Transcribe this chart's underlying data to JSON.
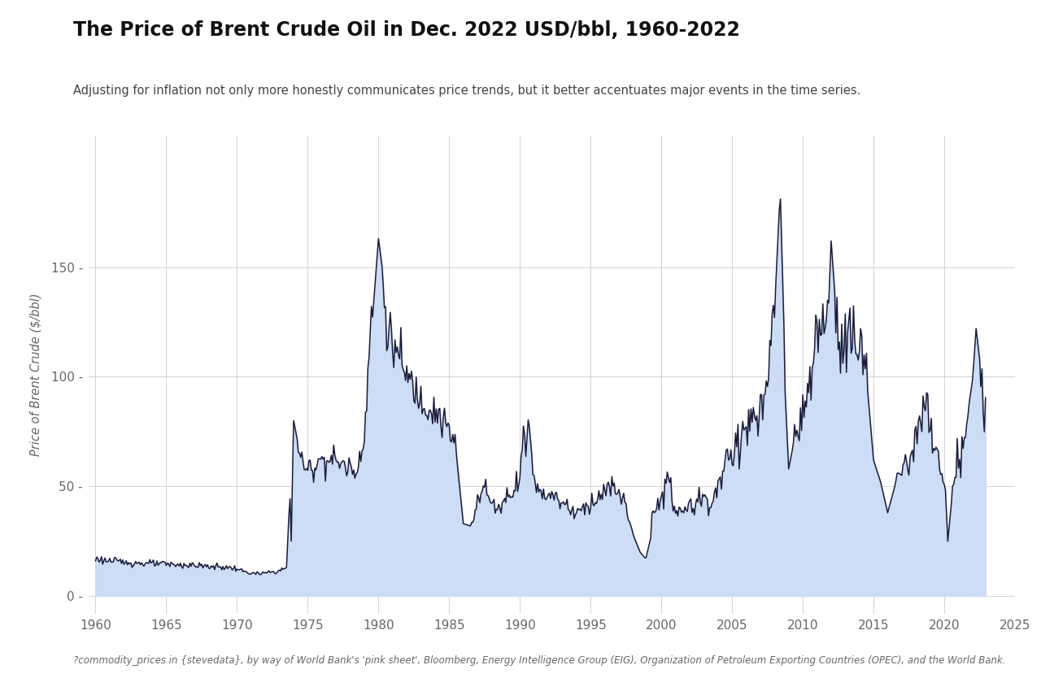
{
  "title": "The Price of Brent Crude Oil in Dec. 2022 USD/bbl, 1960-2022",
  "subtitle": "Adjusting for inflation not only more honestly communicates price trends, but it better accentuates major events in the time series.",
  "footnote": "?commodity_prices in {stevedata}, by way of World Bank's 'pink sheet', Bloomberg, Energy Intelligence Group (EIG), Organization of Petroleum Exporting Countries (OPEC), and the World Bank.",
  "ylabel": "Price of Brent Crude ($/bbl)",
  "xlim": [
    1959.5,
    2025
  ],
  "ylim": [
    -8,
    210
  ],
  "yticks": [
    0,
    50,
    100,
    150
  ],
  "xticks": [
    1960,
    1965,
    1970,
    1975,
    1980,
    1985,
    1990,
    1995,
    2000,
    2005,
    2010,
    2015,
    2020,
    2025
  ],
  "line_color": "#1c1c3a",
  "fill_color": "#ccddf5",
  "background_color": "#ffffff",
  "grid_color": "#cccccc",
  "monthly_times": [],
  "monthly_prices": []
}
